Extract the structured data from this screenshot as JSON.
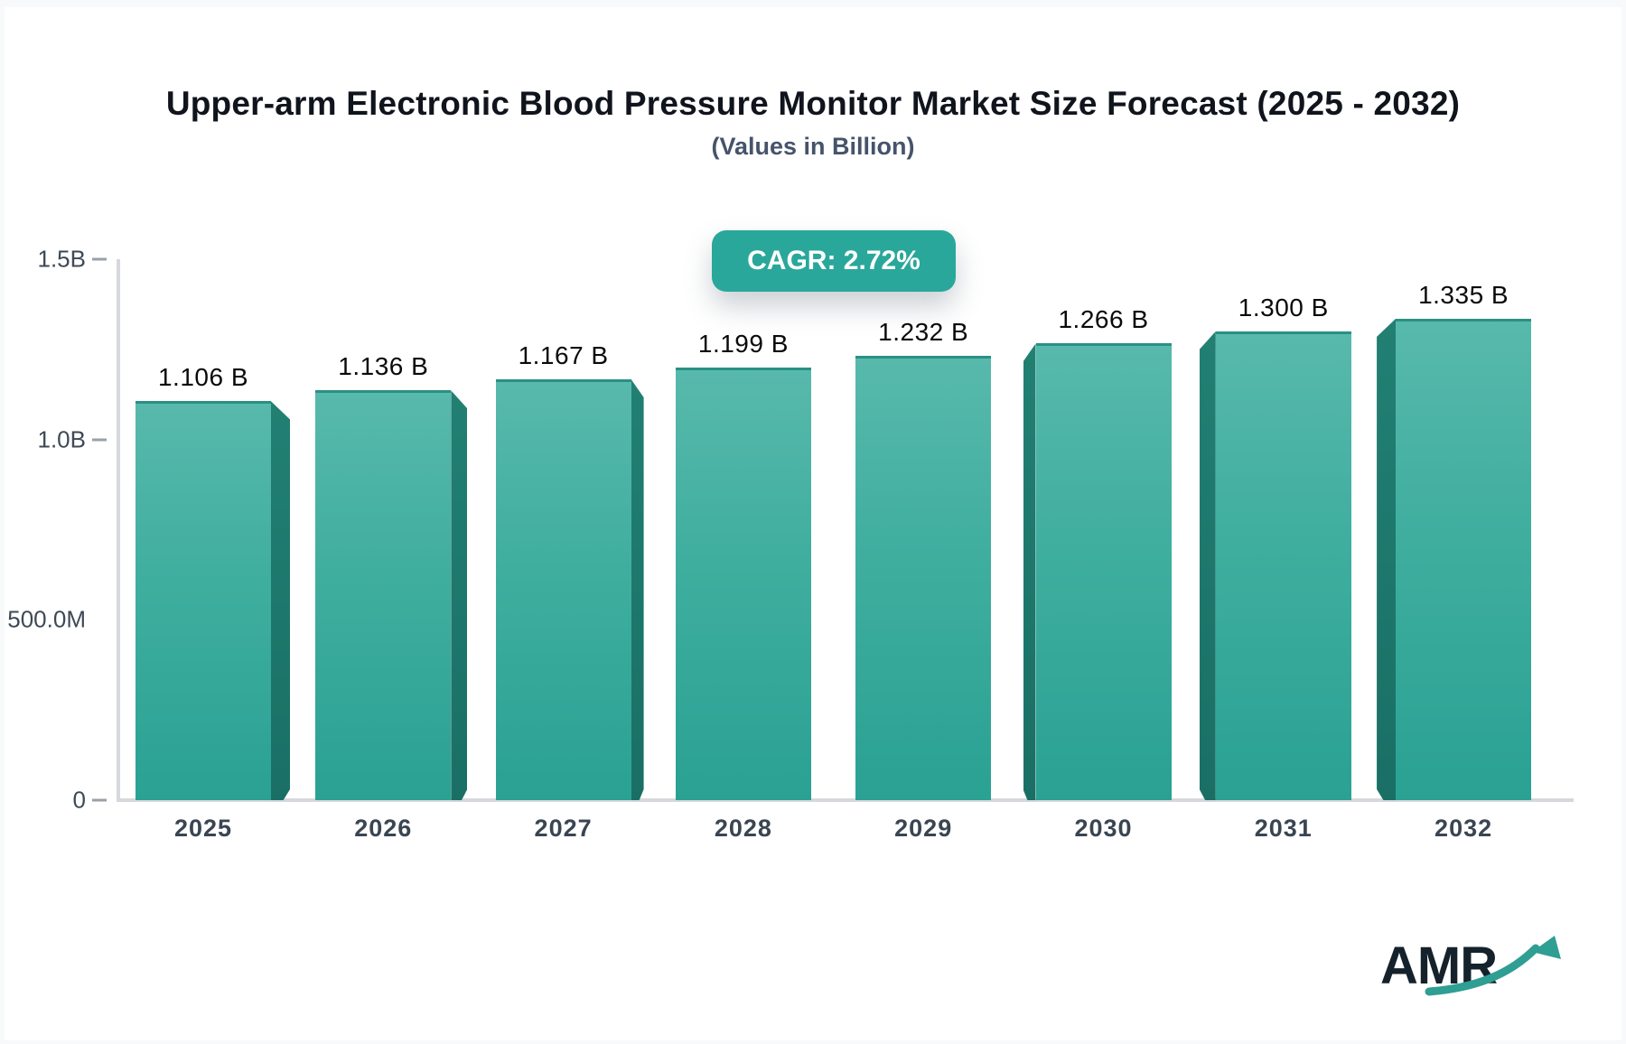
{
  "page": {
    "background": "#f8f9fb",
    "card_background": "#ffffff"
  },
  "header": {
    "title": "Upper-arm Electronic Blood Pressure Monitor Market Size Forecast (2025 - 2032)",
    "subtitle": "(Values in Billion)"
  },
  "cagr_badge": {
    "label": "CAGR: 2.72%",
    "background": "#2aa79b",
    "text_color": "#ffffff"
  },
  "chart_data": {
    "type": "bar",
    "title": "Upper-arm Electronic Blood Pressure Monitor Market Size Forecast (2025 - 2032)",
    "subtitle": "(Values in Billion)",
    "unit": "Billion USD",
    "cagr": "2.72%",
    "categories": [
      "2025",
      "2026",
      "2027",
      "2028",
      "2029",
      "2030",
      "2031",
      "2032"
    ],
    "values": [
      1.106,
      1.136,
      1.167,
      1.199,
      1.232,
      1.266,
      1.3,
      1.335
    ],
    "value_labels": [
      "1.106 B",
      "1.136 B",
      "1.167 B",
      "1.199 B",
      "1.232 B",
      "1.266 B",
      "1.300 B",
      "1.335 B"
    ],
    "ylim": [
      0,
      1.5
    ],
    "yticks": [
      {
        "value": 1.5,
        "label": "1.5B",
        "dash": true
      },
      {
        "value": 1.0,
        "label": "1.0B",
        "dash": true
      },
      {
        "value": 0.5,
        "label": "500.0M",
        "dash": false
      },
      {
        "value": 0.0,
        "label": "0",
        "dash": true
      }
    ],
    "grid": false,
    "legend": false,
    "bar_color_top": "#58b9ac",
    "bar_color_bottom": "#2aa193",
    "bar_side_color": "#1e796e",
    "bar_top_edge_color": "#2b9084"
  },
  "logo": {
    "text": "AMR",
    "text_color": "#15222b",
    "arrow_color": "#2f9e93"
  }
}
